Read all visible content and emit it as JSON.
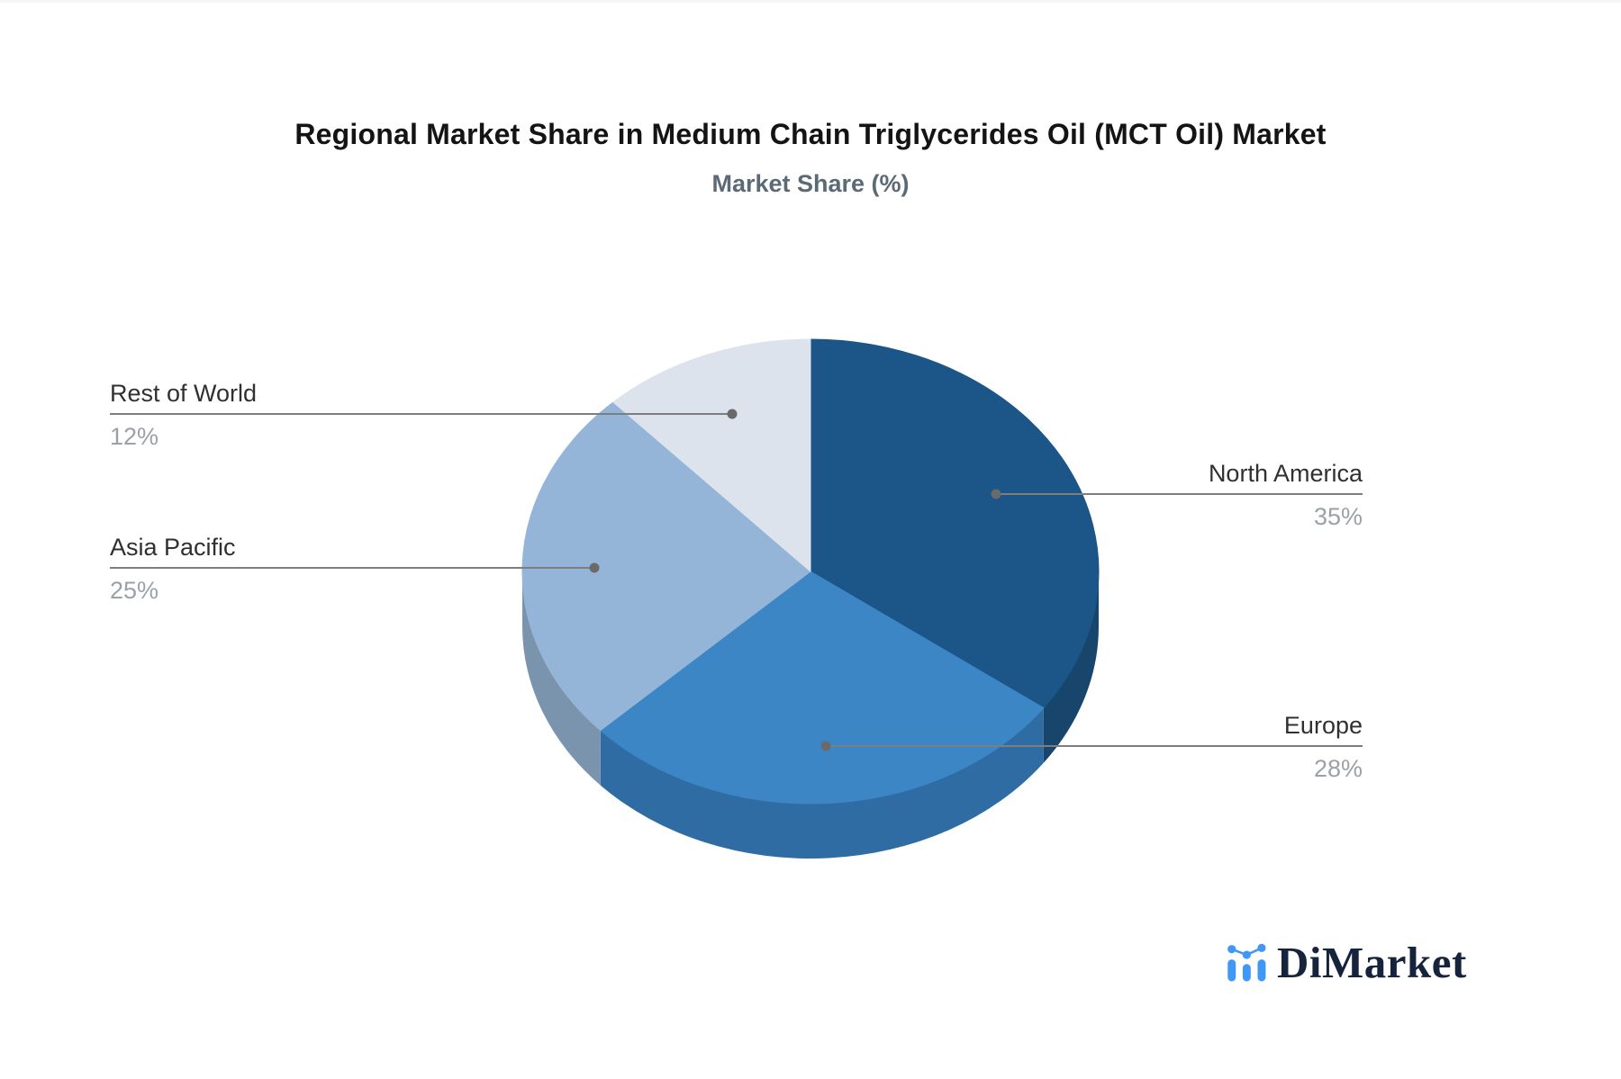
{
  "title": "Regional Market Share in Medium Chain Triglycerides Oil (MCT Oil) Market",
  "subtitle": "Market Share (%)",
  "brand": {
    "name": "DiMarket",
    "text_color": "#16233c",
    "icon_color": "#3f97f6"
  },
  "chart_data": {
    "type": "pie",
    "three_d": true,
    "title": "Regional Market Share in Medium Chain Triglycerides Oil (MCT Oil) Market",
    "subtitle": "Market Share (%)",
    "unit": "%",
    "direction": "clockwise",
    "start_angle_deg": 0,
    "legend": "none",
    "slices": [
      {
        "label": "North America",
        "value": 35,
        "value_text": "35%",
        "color": "#1c5587",
        "side_color": "#17456b",
        "label_side": "right"
      },
      {
        "label": "Europe",
        "value": 28,
        "value_text": "28%",
        "color": "#3c86c5",
        "side_color": "#2e6ca3",
        "label_side": "right"
      },
      {
        "label": "Asia Pacific",
        "value": 25,
        "value_text": "25%",
        "color": "#95b5d8",
        "side_color": "#7b94ae",
        "label_side": "left"
      },
      {
        "label": "Rest of World",
        "value": 12,
        "value_text": "12%",
        "color": "#dce3ed",
        "side_color": "#b8c4d4",
        "label_side": "left"
      }
    ],
    "label_style": {
      "name_color": "#303030",
      "value_color": "#9ba1a6",
      "leader_line_color": "#7e7e7e"
    }
  }
}
